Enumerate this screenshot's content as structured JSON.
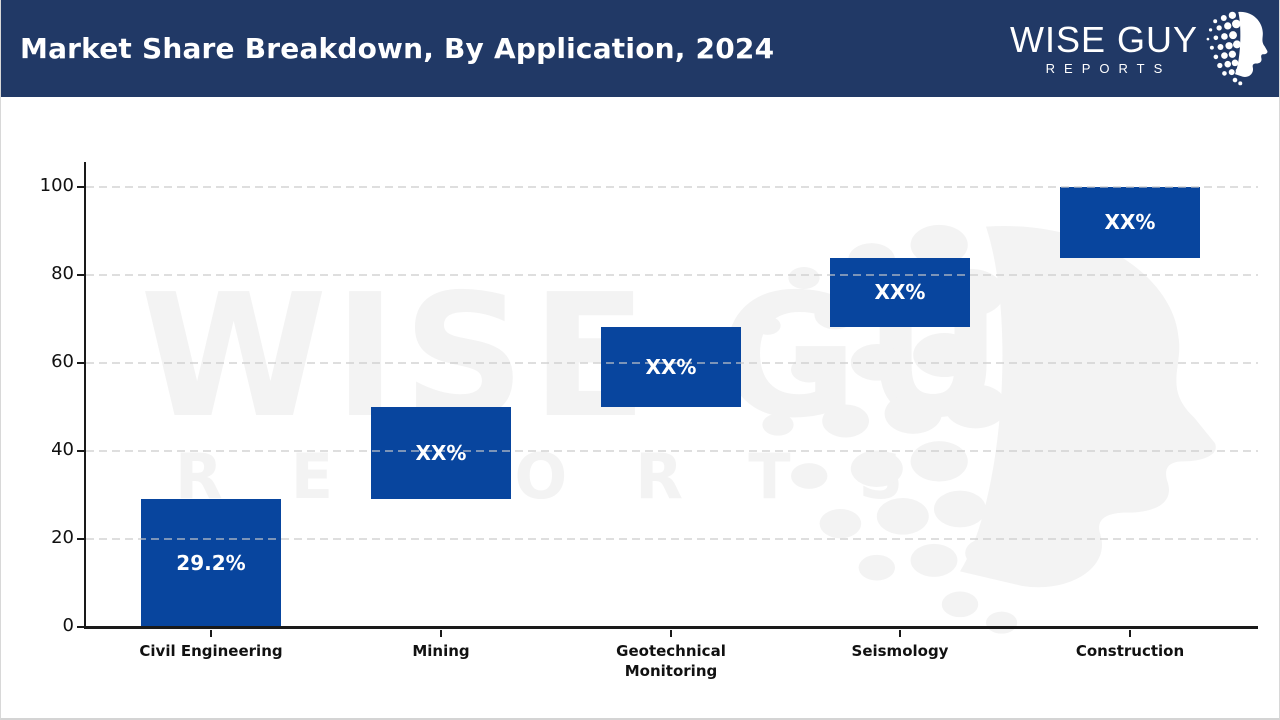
{
  "header": {
    "title": "Market Share Breakdown, By Application, 2024",
    "logo": {
      "wordmark": "WISE GUY",
      "subtext": "REPORTS"
    }
  },
  "watermark": {
    "wordmark": "WISE GUY",
    "subtext": "REPORTS"
  },
  "colors": {
    "header_bg": "#213966",
    "bar": "#08459e",
    "bar_label": "#ffffff",
    "axis": "#1a1a1a",
    "grid": "#c9c9c9",
    "tick_label": "#111111",
    "watermark": "#f3f3f3"
  },
  "chart_data": {
    "type": "bar",
    "subtype": "waterfall",
    "title": "Market Share Breakdown, By Application, 2024",
    "categories": [
      "Civil Engineering",
      "Mining",
      "Geotechnical Monitoring",
      "Seismology",
      "Construction"
    ],
    "segments": [
      {
        "category": "Civil Engineering",
        "start": 0,
        "end": 29.2,
        "label": "29.2%"
      },
      {
        "category": "Mining",
        "start": 29.2,
        "end": 50,
        "label": "XX%"
      },
      {
        "category": "Geotechnical Monitoring",
        "start": 50,
        "end": 68.2,
        "label": "XX%"
      },
      {
        "category": "Seismology",
        "start": 68.2,
        "end": 83.9,
        "label": "XX%"
      },
      {
        "category": "Construction",
        "start": 83.9,
        "end": 100,
        "label": "XX%"
      }
    ],
    "xlabel": "",
    "ylabel": "",
    "yticks": [
      0,
      20,
      40,
      60,
      80,
      100
    ],
    "ylim": [
      0,
      106
    ],
    "grid": "horizontal-dashed",
    "legend": "none"
  }
}
